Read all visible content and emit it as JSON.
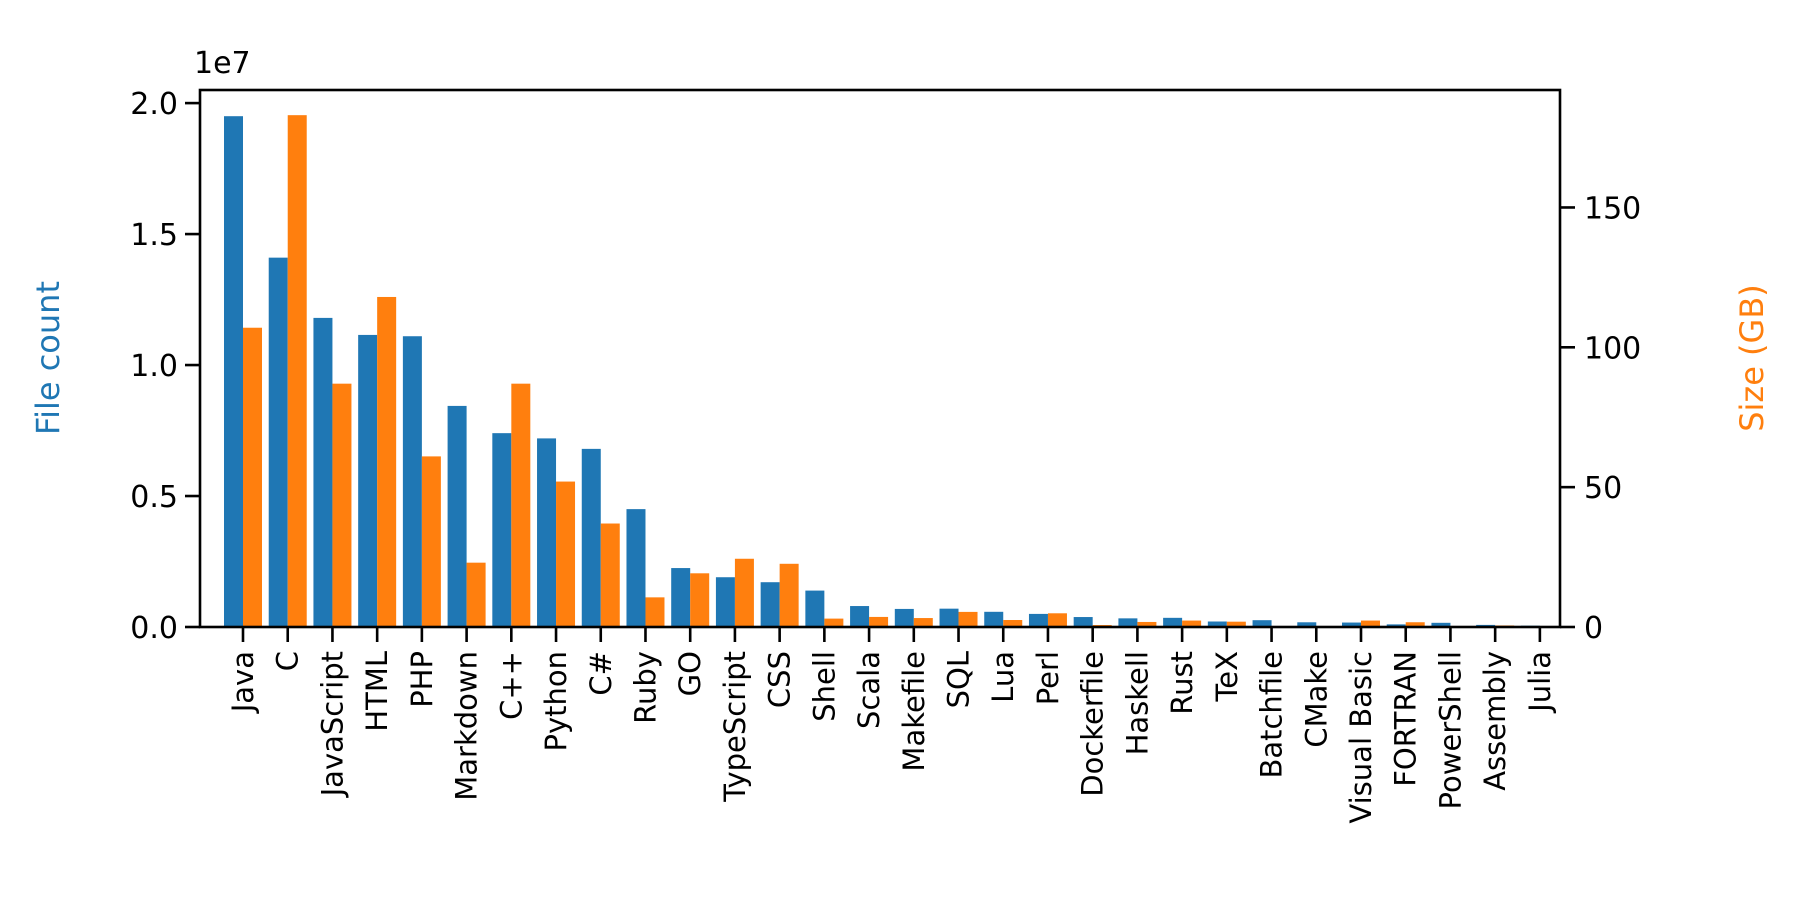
{
  "figure": {
    "background": "#ffffff",
    "offset_text": "1e7"
  },
  "left_axis": {
    "title": "File count",
    "color": "#1f77b4",
    "tick_labels": [
      "0.0",
      "0.5",
      "1.0",
      "1.5",
      "2.0"
    ],
    "tick_values": [
      0,
      5000000,
      10000000,
      15000000,
      20000000
    ],
    "max": 20500000
  },
  "right_axis": {
    "title": "Size (GB)",
    "color": "#ff7f0e",
    "tick_labels": [
      "0",
      "50",
      "100",
      "150"
    ],
    "tick_values": [
      0,
      50,
      100,
      150
    ],
    "max": 192
  },
  "chart_data": {
    "type": "bar",
    "title": "",
    "xlabel": "",
    "grid": false,
    "legend": "none",
    "ylim_left": [
      0,
      20500000
    ],
    "ylim_right": [
      0,
      192
    ],
    "left_offset_factor": "1e7",
    "categories": [
      "Java",
      "C",
      "JavaScript",
      "HTML",
      "PHP",
      "Markdown",
      "C++",
      "Python",
      "C#",
      "Ruby",
      "GO",
      "TypeScript",
      "CSS",
      "Shell",
      "Scala",
      "Makefile",
      "SQL",
      "Lua",
      "Perl",
      "Dockerfile",
      "Haskell",
      "Rust",
      "TeX",
      "Batchfile",
      "CMake",
      "Visual Basic",
      "FORTRAN",
      "PowerShell",
      "Assembly",
      "Julia"
    ],
    "series": [
      {
        "name": "File count",
        "axis": "left",
        "color": "#1f77b4",
        "values": [
          19500000,
          14100000,
          11800000,
          11150000,
          11100000,
          8440000,
          7400000,
          7200000,
          6800000,
          4500000,
          2250000,
          1900000,
          1710000,
          1390000,
          800000,
          690000,
          700000,
          580000,
          500000,
          380000,
          330000,
          350000,
          210000,
          260000,
          180000,
          170000,
          100000,
          160000,
          80000,
          50000
        ]
      },
      {
        "name": "Size (GB)",
        "axis": "right",
        "color": "#ff7f0e",
        "values": [
          107,
          183,
          87,
          118,
          61,
          23,
          87,
          52,
          37,
          10.6,
          19.2,
          24.4,
          22.6,
          3.0,
          3.6,
          3.2,
          5.4,
          2.5,
          4.9,
          0.7,
          1.8,
          2.3,
          1.9,
          0.3,
          0.25,
          2.3,
          1.7,
          0.3,
          0.55,
          0.2
        ]
      }
    ]
  }
}
